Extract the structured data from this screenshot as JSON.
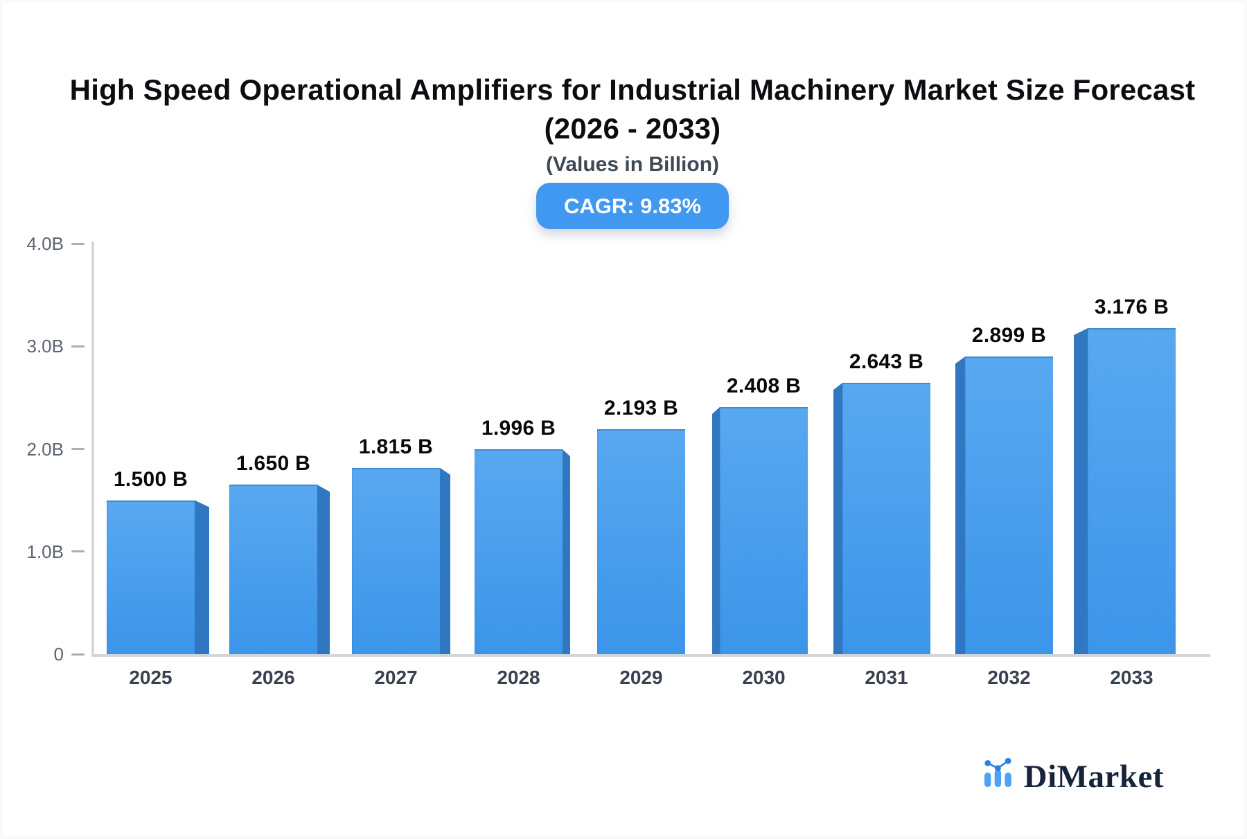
{
  "header": {
    "title_line1": "High Speed Operational Amplifiers for Industrial Machinery Market Size Forecast",
    "title_line2": "(2026 - 2033)",
    "subtitle": "(Values in Billion)",
    "cagr_badge": "CAGR: 9.83%"
  },
  "logo": {
    "text": "DiMarket",
    "icon": "bar-chart-trend-logo-icon"
  },
  "colors": {
    "bar_face_top": "#58a8f0",
    "bar_face_bottom": "#3c95e9",
    "bar_side": "#2f77c1",
    "badge_bg": "#4198f1",
    "badge_text": "#ffffff",
    "axis_line": "#d5d7dc",
    "y_label": "#5c6470",
    "x_label": "#39414e",
    "logo_blue": "#4da2f6",
    "logo_dot_blue": "#2e7fe2",
    "logo_navy": "#16243a"
  },
  "chart_data": {
    "type": "bar",
    "title": "High Speed Operational Amplifiers for Industrial Machinery Market Size Forecast (2026 - 2033)",
    "subtitle": "(Values in Billion)",
    "annotation": "CAGR: 9.83%",
    "categories": [
      "2025",
      "2026",
      "2027",
      "2028",
      "2029",
      "2030",
      "2031",
      "2032",
      "2033"
    ],
    "values": [
      1.5,
      1.65,
      1.815,
      1.996,
      2.193,
      2.408,
      2.643,
      2.899,
      3.176
    ],
    "value_labels": [
      "1.500 B",
      "1.650 B",
      "1.815 B",
      "1.996 B",
      "2.193 B",
      "2.408 B",
      "2.643 B",
      "2.899 B",
      "3.176 B"
    ],
    "xlabel": "",
    "ylabel": "",
    "ylim": [
      0,
      4
    ],
    "y_ticks": [
      {
        "value": 4,
        "label": "4.0B"
      },
      {
        "value": 3,
        "label": "3.0B"
      },
      {
        "value": 2,
        "label": "2.0B"
      },
      {
        "value": 1,
        "label": "1.0B"
      },
      {
        "value": 0,
        "label": "0"
      }
    ],
    "grid": false,
    "legend": null,
    "style": "3d-extruded-bars"
  }
}
